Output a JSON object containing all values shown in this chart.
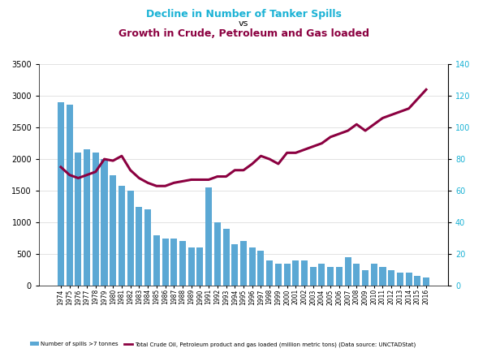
{
  "title_line1": "Decline in Number of Tanker Spills",
  "title_line2": "vs",
  "title_line3": "Growth in Crude, Petroleum and Gas loaded",
  "title_color1": "#1AB2D5",
  "title_color2": "#000000",
  "title_color3": "#8B0040",
  "years": [
    1974,
    1975,
    1976,
    1977,
    1978,
    1979,
    1980,
    1981,
    1982,
    1983,
    1984,
    1985,
    1986,
    1987,
    1988,
    1989,
    1990,
    1991,
    1992,
    1993,
    1994,
    1995,
    1996,
    1997,
    1998,
    1999,
    2000,
    2001,
    2002,
    2003,
    2004,
    2005,
    2006,
    2007,
    2008,
    2009,
    2010,
    2011,
    2012,
    2013,
    2014,
    2015,
    2016
  ],
  "spills": [
    2900,
    2860,
    2100,
    2150,
    2100,
    2000,
    1750,
    1580,
    1500,
    1250,
    1200,
    800,
    750,
    750,
    700,
    600,
    600,
    1550,
    1000,
    900,
    650,
    700,
    600,
    550,
    400,
    350,
    350,
    400,
    400,
    300,
    350,
    300,
    300,
    450,
    350,
    250,
    350,
    300,
    250,
    200,
    200,
    150,
    130
  ],
  "crude_oil": [
    75,
    70,
    68,
    70,
    72,
    80,
    79,
    82,
    73,
    68,
    65,
    63,
    63,
    65,
    66,
    67,
    67,
    67,
    69,
    69,
    73,
    73,
    77,
    82,
    80,
    77,
    84,
    84,
    86,
    88,
    90,
    94,
    96,
    98,
    102,
    98,
    102,
    106,
    108,
    110,
    112,
    118,
    124
  ],
  "bar_color": "#5BA8D4",
  "line_color": "#8B0040",
  "left_ylim": [
    0,
    3500
  ],
  "right_ylim": [
    0,
    140
  ],
  "left_yticks": [
    0,
    500,
    1000,
    1500,
    2000,
    2500,
    3000,
    3500
  ],
  "right_yticks": [
    0,
    20,
    40,
    60,
    80,
    100,
    120,
    140
  ],
  "legend1": "Number of spills >7 tonnes",
  "legend2": "Total Crude Oil, Petroleum product and gas loaded (million metric tons) (Data source: UNCTADStat)"
}
